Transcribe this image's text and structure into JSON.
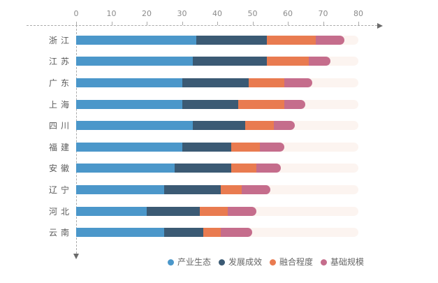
{
  "chart_data": {
    "type": "bar",
    "orientation": "horizontal",
    "stacked": true,
    "categories": [
      "浙江",
      "江苏",
      "广东",
      "上海",
      "四川",
      "福建",
      "安徽",
      "辽宁",
      "河北",
      "云南"
    ],
    "series": [
      {
        "name": "产业生态",
        "color": "#4b97ca",
        "values": [
          34,
          33,
          30,
          30,
          33,
          30,
          28,
          25,
          20,
          25
        ]
      },
      {
        "name": "发展成效",
        "color": "#3b5a74",
        "values": [
          20,
          21,
          19,
          16,
          15,
          14,
          16,
          16,
          15,
          11
        ]
      },
      {
        "name": "融合程度",
        "color": "#e97b50",
        "values": [
          14,
          12,
          10,
          13,
          8,
          8,
          7,
          6,
          8,
          5
        ]
      },
      {
        "name": "基础规模",
        "color": "#c56d8c",
        "values": [
          8,
          6,
          8,
          6,
          6,
          7,
          7,
          8,
          8,
          9
        ]
      }
    ],
    "totals": [
      76,
      72,
      67,
      65,
      62,
      59,
      58,
      55,
      51,
      50
    ],
    "xlim": [
      0,
      80
    ],
    "x_ticks": [
      0,
      10,
      20,
      30,
      40,
      50,
      60,
      70,
      80
    ],
    "track_color": "#fcf4f0",
    "axis_dash_color": "#ababab",
    "legend_position": "bottom",
    "grid": false
  }
}
